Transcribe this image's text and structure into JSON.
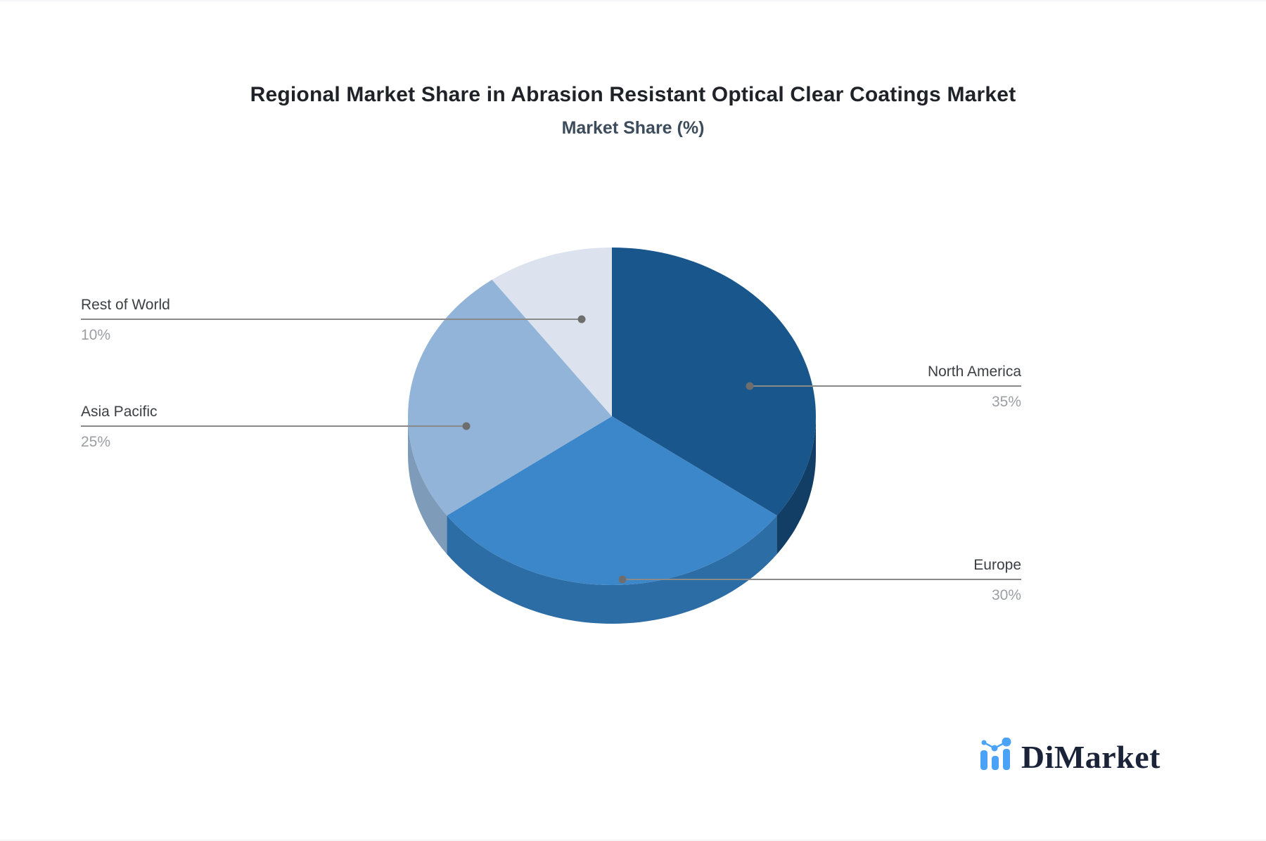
{
  "page": {
    "title": "Regional Market Share in Abrasion Resistant Optical Clear Coatings Market",
    "subtitle": "Market Share (%)"
  },
  "brand": {
    "name": "DiMarket",
    "icon": "bar-chart-logo-icon",
    "icon_color": "#4aa3f7",
    "text_color": "#1b2338"
  },
  "chart_data": {
    "type": "pie",
    "style": "3d",
    "title": "Regional Market Share in Abrasion Resistant Optical Clear Coatings Market",
    "subtitle": "Market Share (%)",
    "unit": "%",
    "start_angle_deg": -90,
    "direction": "clockwise",
    "legend_position": "callout-labels",
    "categories": [
      "North America",
      "Europe",
      "Asia Pacific",
      "Rest of World"
    ],
    "values": [
      35,
      30,
      25,
      10
    ],
    "slices": [
      {
        "label": "North America",
        "value": 35,
        "pct_label": "35%",
        "color": "#19568C",
        "side_color": "#123E66",
        "label_side": "right"
      },
      {
        "label": "Europe",
        "value": 30,
        "pct_label": "30%",
        "color": "#3C87C9",
        "side_color": "#2D6DA5",
        "label_side": "right"
      },
      {
        "label": "Asia Pacific",
        "value": 25,
        "pct_label": "25%",
        "color": "#92B4D8",
        "side_color": "#7E9BB9",
        "label_side": "left"
      },
      {
        "label": "Rest of World",
        "value": 10,
        "pct_label": "10%",
        "color": "#DCE3EE",
        "side_color": "#C2CCDD",
        "label_side": "left"
      }
    ],
    "connector_color": "#8a8a8a",
    "dot_color": "#6e6e6e"
  }
}
